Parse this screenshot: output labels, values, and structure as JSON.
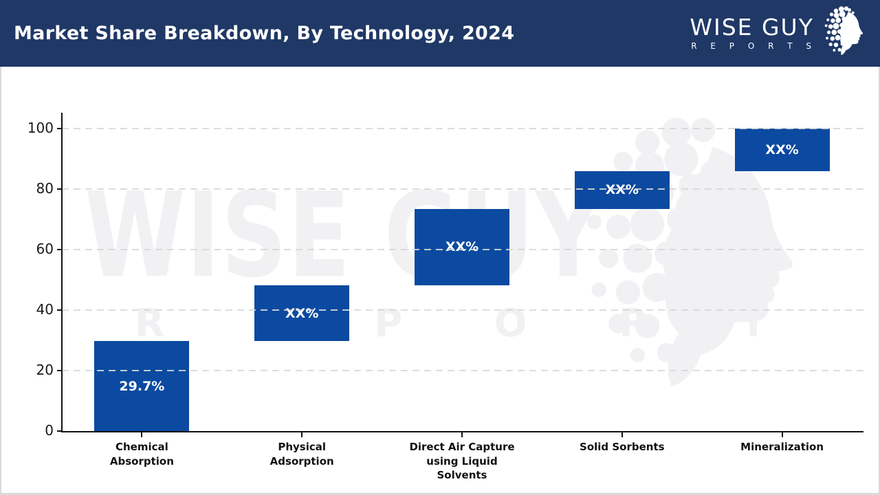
{
  "header": {
    "title": "Market Share Breakdown, By Technology, 2024",
    "bg_color": "#1f3866",
    "logo": {
      "line1": "WISE GUY",
      "line2": "R E P O R T S"
    }
  },
  "watermark": {
    "line1": "WISE GUY",
    "line2": "R E P O R T S"
  },
  "chart_data": {
    "type": "bar",
    "subtype": "waterfall",
    "title": "Market Share Breakdown, By Technology, 2024",
    "categories": [
      "Chemical\nAbsorption",
      "Physical\nAdsorption",
      "Direct Air Capture\nusing Liquid\nSolvents",
      "Solid Sorbents",
      "Mineralization"
    ],
    "segments": [
      {
        "start": 0,
        "end": 29.7,
        "label": "29.7%"
      },
      {
        "start": 29.7,
        "end": 48.2,
        "label": "XX%"
      },
      {
        "start": 48.2,
        "end": 73.5,
        "label": "XX%"
      },
      {
        "start": 73.5,
        "end": 86.0,
        "label": "XX%"
      },
      {
        "start": 86.0,
        "end": 100.0,
        "label": "XX%"
      }
    ],
    "ylim": [
      0,
      100
    ],
    "yticks": [
      0,
      20,
      40,
      60,
      80,
      100
    ],
    "grid": "dashed horizontal gridlines",
    "legend": "none",
    "bar_color": "#0b4aa0",
    "bar_label_color": "#ffffff",
    "gridline_color": "#d8d8d8",
    "axis_color": "#111111",
    "watermark_color": "#f1f1f4"
  }
}
